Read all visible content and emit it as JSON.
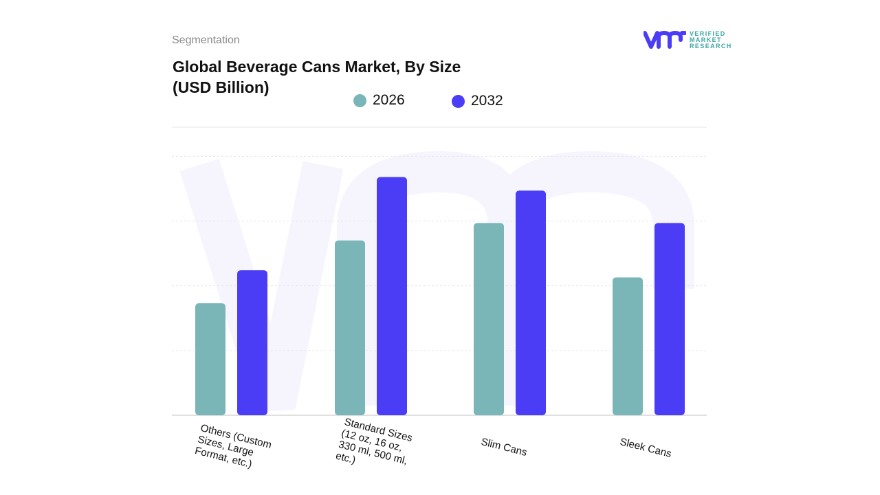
{
  "header": {
    "section": "Segmentation",
    "title": "Global Beverage Cans Market, By Size (USD Billion)"
  },
  "logo": {
    "name": "VERIFIED MARKET RESEARCH",
    "lines": [
      "VERIFIED",
      "MARKET",
      "RESEARCH"
    ],
    "color": "#4b3cf5",
    "text_color": "#3aa6a0"
  },
  "chart_data": {
    "type": "bar",
    "title": "Global Beverage Cans Market, By Size (USD Billion)",
    "categories": [
      "Others (Custom Sizes, Large Format, etc.)",
      "Standard Sizes (12 oz, 16 oz, 330 ml, 500 ml, etc.)",
      "Slim Cans",
      "Sleek Cans"
    ],
    "category_lines": [
      [
        "Others (Custom",
        "Sizes, Large",
        "Format, etc.)"
      ],
      [
        "Standard Sizes",
        "(12 oz, 16 oz,",
        "330 ml, 500 ml,",
        "etc.)"
      ],
      [
        "Slim Cans"
      ],
      [
        "Sleek Cans"
      ]
    ],
    "series": [
      {
        "name": "2026",
        "color": "#7ab5b8",
        "values": [
          1.73,
          2.7,
          2.97,
          2.13
        ]
      },
      {
        "name": "2032",
        "color": "#4b3cf5",
        "values": [
          2.24,
          3.68,
          3.47,
          2.97
        ]
      }
    ],
    "ylim": [
      0,
      4.45
    ],
    "grid": true,
    "gridlines": [
      1,
      2,
      3,
      4,
      4.45
    ],
    "legend_position": "top",
    "y_ticks_shown": false
  }
}
